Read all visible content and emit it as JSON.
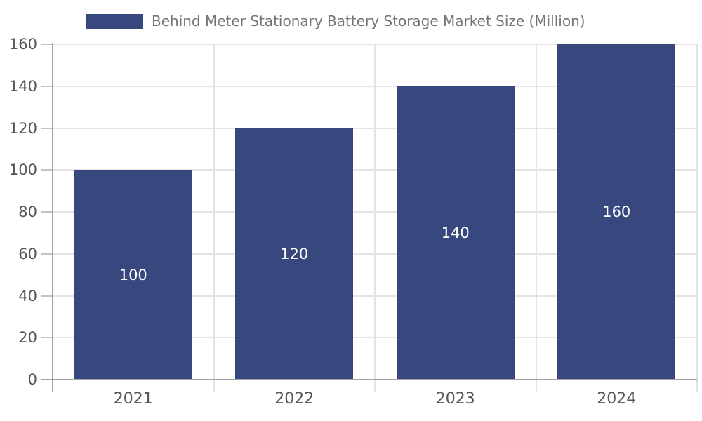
{
  "legend": {
    "label": "Behind Meter Stationary Battery Storage Market Size (Million)"
  },
  "colors": {
    "bar": "#38487F",
    "legend_swatch": "#38487F",
    "grid": "#e4e4e4",
    "spine": "#a3a3a3",
    "tick_label": "#565656",
    "legend_text": "#757575",
    "value_label": "#ffffff",
    "background": "#ffffff"
  },
  "chart_data": {
    "type": "bar",
    "title": "Behind Meter Stationary Battery Storage Market Size (Million)",
    "categories": [
      "2021",
      "2022",
      "2023",
      "2024"
    ],
    "series": [
      {
        "name": "Behind Meter Stationary Battery Storage Market Size (Million)",
        "values": [
          100,
          120,
          140,
          160
        ],
        "value_labels": [
          "100",
          "120",
          "140",
          "160"
        ],
        "color": "#38487F"
      }
    ],
    "xlabel": "",
    "ylabel": "",
    "ylim": [
      0,
      160
    ],
    "yticks": [
      0,
      20,
      40,
      60,
      80,
      100,
      120,
      140,
      160
    ],
    "grid": true,
    "legend_position": "top"
  }
}
